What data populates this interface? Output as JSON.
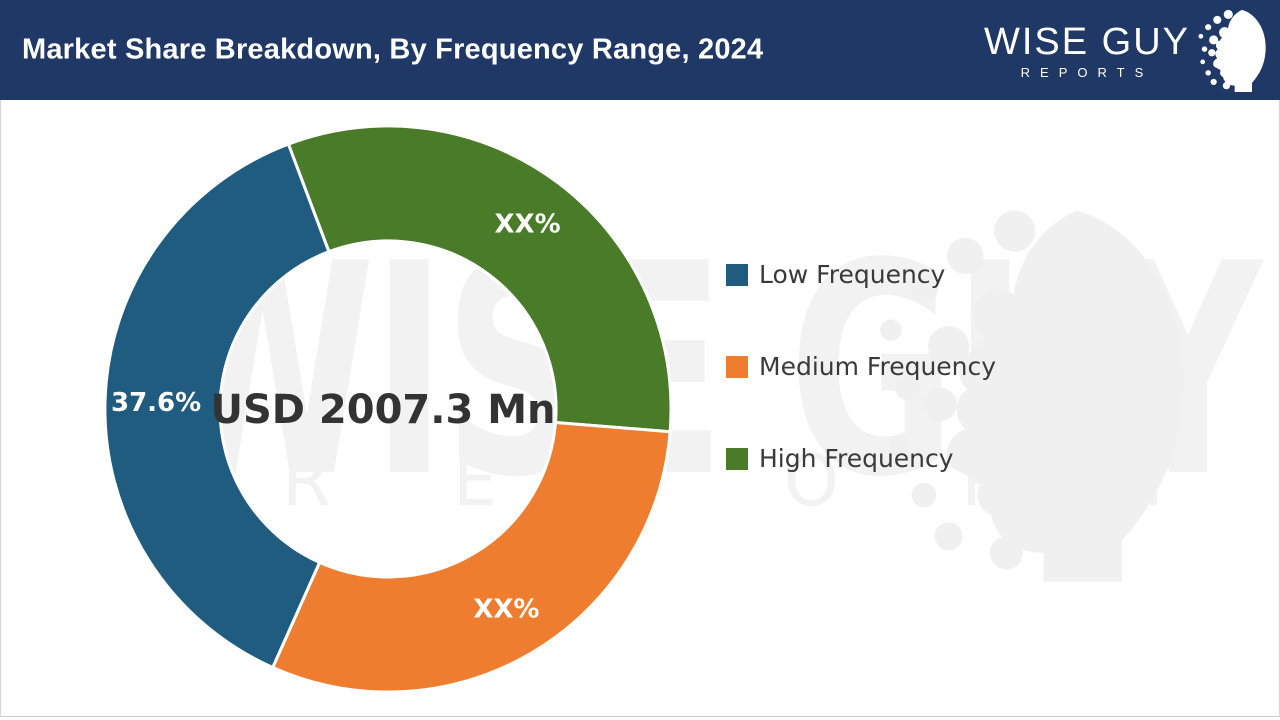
{
  "header": {
    "title": "Market Share Breakdown, By Frequency Range, 2024",
    "background_color": "#1F3865",
    "logo": {
      "name": "WISE GUY",
      "subtitle": "REPORTS"
    }
  },
  "watermark": {
    "line1": "WISE GUY",
    "line2": "R E P O R T S"
  },
  "chart_data": {
    "type": "pie",
    "variant": "donut",
    "title": "Market Share Breakdown, By Frequency Range, 2024",
    "center_text": "USD 2007.3 Mn",
    "start_angle_deg": -20.6,
    "direction": "clockwise",
    "legend_position": "right",
    "segments": [
      {
        "name": "High Frequency",
        "value_label": "XX%",
        "percent": 32.0,
        "color": "#4A7B28"
      },
      {
        "name": "Medium Frequency",
        "value_label": "XX%",
        "percent": 30.4,
        "color": "#EE7D30"
      },
      {
        "name": "Low Frequency",
        "value_label": "37.6%",
        "percent": 37.6,
        "color": "#205C7F"
      }
    ],
    "legend": [
      {
        "label": "Low Frequency",
        "color": "#205C7F"
      },
      {
        "label": "Medium Frequency",
        "color": "#EE7D30"
      },
      {
        "label": "High Frequency",
        "color": "#4A7B28"
      }
    ]
  }
}
